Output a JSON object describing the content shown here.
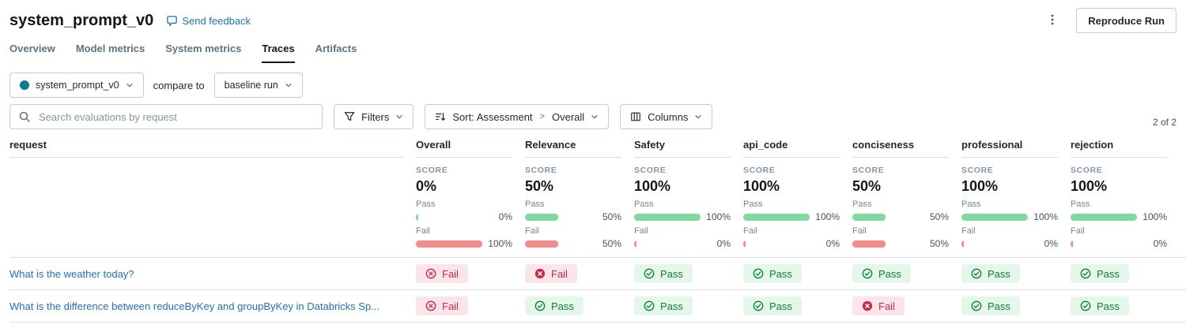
{
  "header": {
    "title": "system_prompt_v0",
    "feedback_label": "Send feedback",
    "reproduce_button": "Reproduce Run"
  },
  "tabs": [
    {
      "label": "Overview"
    },
    {
      "label": "Model metrics"
    },
    {
      "label": "System metrics"
    },
    {
      "label": "Traces"
    },
    {
      "label": "Artifacts"
    }
  ],
  "active_tab": "Traces",
  "compare_bar": {
    "run_name": "system_prompt_v0",
    "compare_to_label": "compare to",
    "baseline_value": "baseline run"
  },
  "toolbar": {
    "search_placeholder": "Search evaluations by request",
    "filters_label": "Filters",
    "sort_label": "Sort: Assessment",
    "sort_separator": ">",
    "sort_value": "Overall",
    "columns_label": "Columns",
    "result_count": "2 of 2"
  },
  "table": {
    "labels": {
      "request": "request",
      "score": "SCORE",
      "pass": "Pass",
      "fail": "Fail"
    },
    "metrics": [
      {
        "name": "Overall",
        "score": "0%",
        "pass_pct": 0,
        "fail_pct": 100
      },
      {
        "name": "Relevance",
        "score": "50%",
        "pass_pct": 50,
        "fail_pct": 50
      },
      {
        "name": "Safety",
        "score": "100%",
        "pass_pct": 100,
        "fail_pct": 0
      },
      {
        "name": "api_code",
        "score": "100%",
        "pass_pct": 100,
        "fail_pct": 0
      },
      {
        "name": "conciseness",
        "score": "50%",
        "pass_pct": 50,
        "fail_pct": 50
      },
      {
        "name": "professional",
        "score": "100%",
        "pass_pct": 100,
        "fail_pct": 0
      },
      {
        "name": "rejection",
        "score": "100%",
        "pass_pct": 100,
        "fail_pct": 0
      }
    ],
    "rows": [
      {
        "request": "What is the weather today?",
        "results": [
          {
            "label": "Fail",
            "icon": "x-circle-outline"
          },
          {
            "label": "Fail",
            "icon": "x-circle-filled"
          },
          {
            "label": "Pass",
            "icon": "check-circle-outline"
          },
          {
            "label": "Pass",
            "icon": "check-circle-outline"
          },
          {
            "label": "Pass",
            "icon": "check-circle-outline"
          },
          {
            "label": "Pass",
            "icon": "check-circle-outline"
          },
          {
            "label": "Pass",
            "icon": "check-circle-outline"
          }
        ]
      },
      {
        "request": "What is the difference between reduceByKey and groupByKey in Databricks Sp...",
        "results": [
          {
            "label": "Fail",
            "icon": "x-circle-outline"
          },
          {
            "label": "Pass",
            "icon": "check-circle-outline"
          },
          {
            "label": "Pass",
            "icon": "check-circle-outline"
          },
          {
            "label": "Pass",
            "icon": "check-circle-outline"
          },
          {
            "label": "Fail",
            "icon": "x-circle-filled"
          },
          {
            "label": "Pass",
            "icon": "check-circle-outline"
          },
          {
            "label": "Pass",
            "icon": "check-circle-outline"
          }
        ]
      }
    ]
  },
  "colors": {
    "accent_blue": "#2272B4",
    "pass_green_bar": "#82D99F",
    "fail_red_bar": "#F58C8C",
    "pass_badge_bg": "#E4F7EA",
    "pass_badge_text": "#127E38",
    "fail_badge_bg": "#FBE5E8",
    "fail_badge_text": "#C4294C",
    "run_dot": "#0E7C8C"
  }
}
